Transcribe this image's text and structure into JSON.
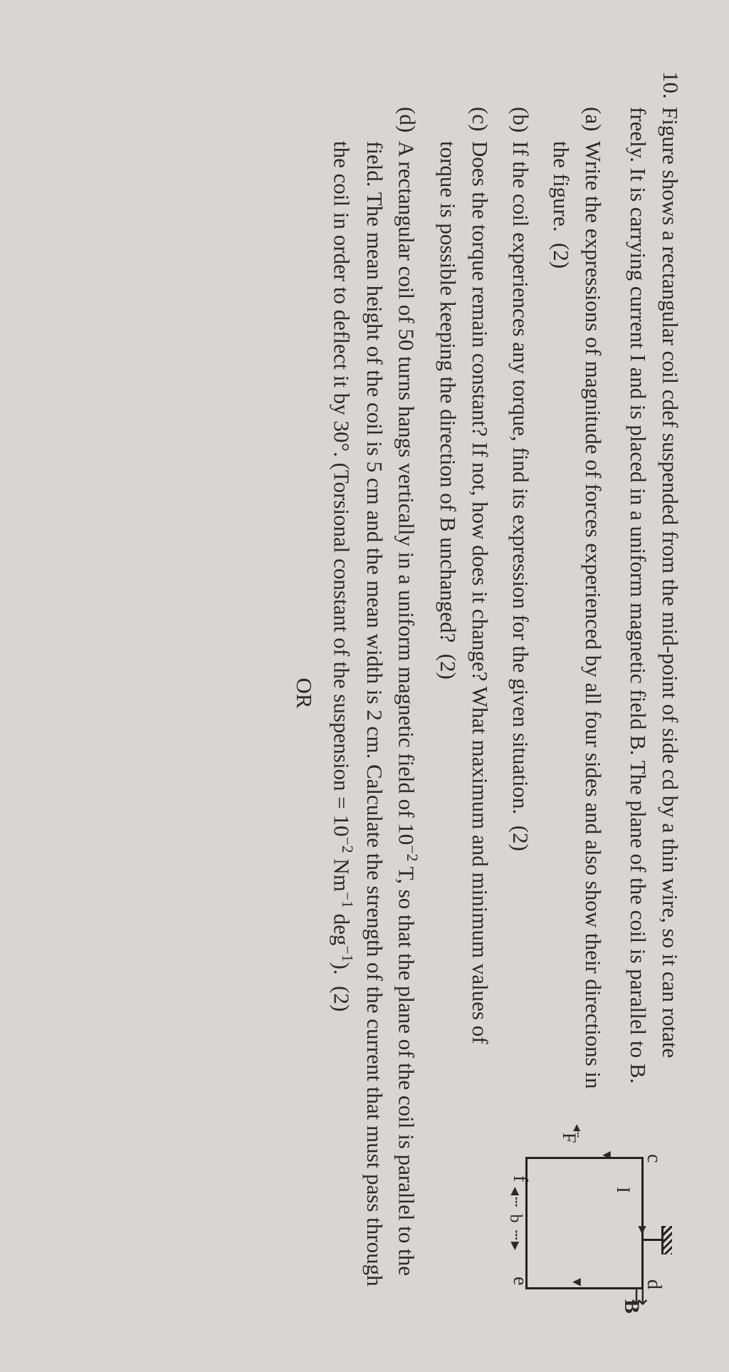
{
  "question": {
    "number": "10.",
    "intro": "Figure shows a rectangular coil cdef suspended from the mid-point of side cd by a thin wire, so it can rotate freely. It is carrying current I and is placed in a uniform magnetic field B. The plane of the coil is parallel to B.",
    "parts": {
      "a": {
        "label": "(a)",
        "text": "Write the expressions of magnitude of forces experienced by all four sides and also show their directions in the figure.",
        "marks": "(2)"
      },
      "b": {
        "label": "(b)",
        "text": "If the coil experiences any torque, find its expression for the given situation.",
        "marks": "(2)"
      },
      "c": {
        "label": "(c)",
        "text": "Does the torque remain constant? If not, how does it change? What maximum and minimum values of torque is possible keeping the direction of B unchanged?",
        "marks": "(2)"
      },
      "d": {
        "label": "(d)",
        "text_pre": "A rectangular coil of 50 turns hangs vertically in a uniform magnetic field of 10",
        "exp1": "−2",
        "text_mid1": " T, so that the plane of the coil is parallel to the field. The mean height of the coil is 5 cm and the mean width is 2 cm. Calculate the strength of the current that must pass through the coil in order to deflect it by 30°. (Torsional constant of the suspension = 10",
        "exp2": "−2",
        "text_mid2": " Nm",
        "exp3": "−1",
        "text_mid3": " deg",
        "exp4": "−1",
        "text_end": ").",
        "marks": "(2)"
      }
    },
    "or": "OR"
  },
  "figure": {
    "labels": {
      "c": "c",
      "d": "d",
      "e": "e",
      "f": "f",
      "I": "I",
      "B": "B",
      "F": "F",
      "b": "b"
    },
    "colors": {
      "line": "#222222",
      "bg": "#d8d6d2"
    }
  }
}
